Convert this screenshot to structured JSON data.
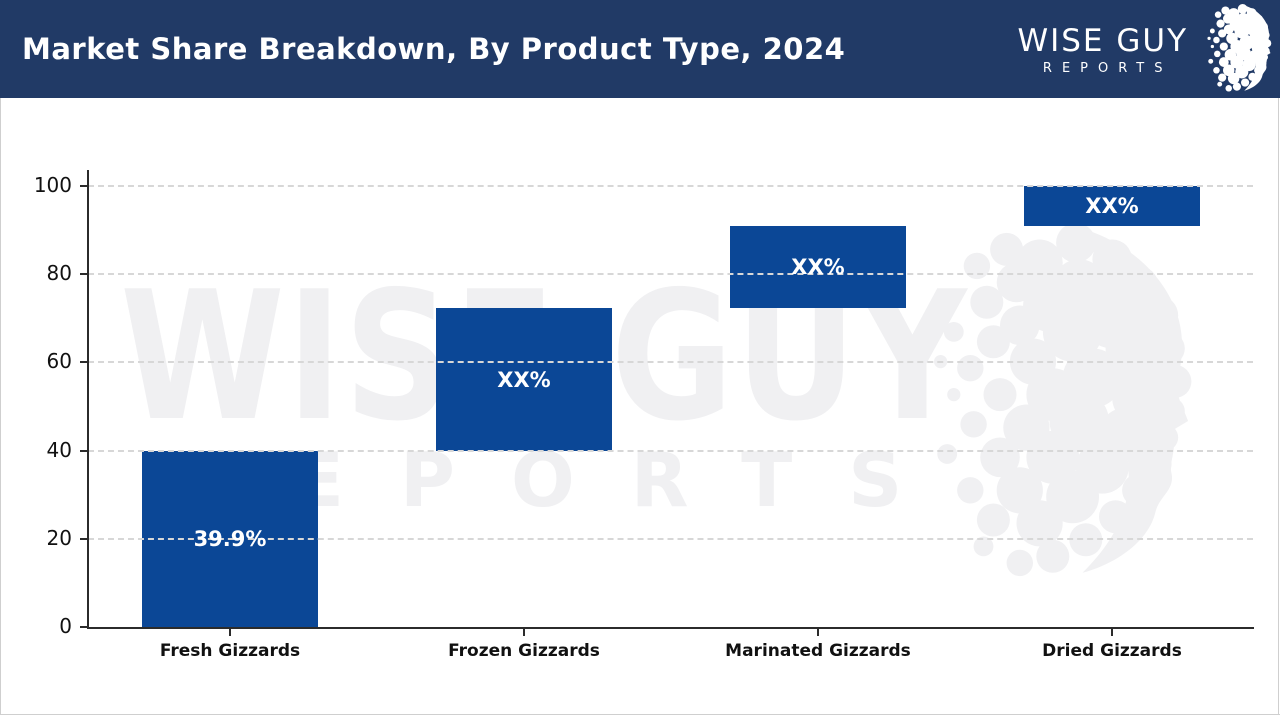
{
  "header": {
    "title": "Market Share Breakdown, By Product Type, 2024",
    "logo": {
      "line1": "WISE GUY",
      "line2": "REPORTS"
    }
  },
  "watermark": {
    "line1": "WISE GUY",
    "line2": "REPORTS"
  },
  "chart_data": {
    "type": "bar",
    "subtype": "waterfall",
    "title": "Market Share Breakdown, By Product Type, 2024",
    "categories": [
      "Fresh Gizzards",
      "Frozen Gizzards",
      "Marinated Gizzards",
      "Dried Gizzards"
    ],
    "segments": [
      {
        "category": "Fresh Gizzards",
        "start": 0,
        "end": 39.9,
        "value": 39.9,
        "label": "39.9%"
      },
      {
        "category": "Frozen Gizzards",
        "start": 39.9,
        "end": 72.3,
        "value": 32.4,
        "label": "XX%"
      },
      {
        "category": "Marinated Gizzards",
        "start": 72.3,
        "end": 90.9,
        "value": 18.6,
        "label": "XX%"
      },
      {
        "category": "Dried Gizzards",
        "start": 90.9,
        "end": 100,
        "value": 9.1,
        "label": "XX%"
      }
    ],
    "yticks": [
      0,
      20,
      40,
      60,
      80,
      100
    ],
    "ylim": [
      0,
      104
    ],
    "xlabel": "",
    "ylabel": "",
    "grid": "horizontal-dashed",
    "legend": "none"
  },
  "colors": {
    "header_bg": "#213a66",
    "bar": "#0b4796",
    "bar_label": "#ffffff",
    "watermark": "#f0f0f2",
    "axis": "#2b2b2b",
    "grid": "#d7d7d7"
  }
}
